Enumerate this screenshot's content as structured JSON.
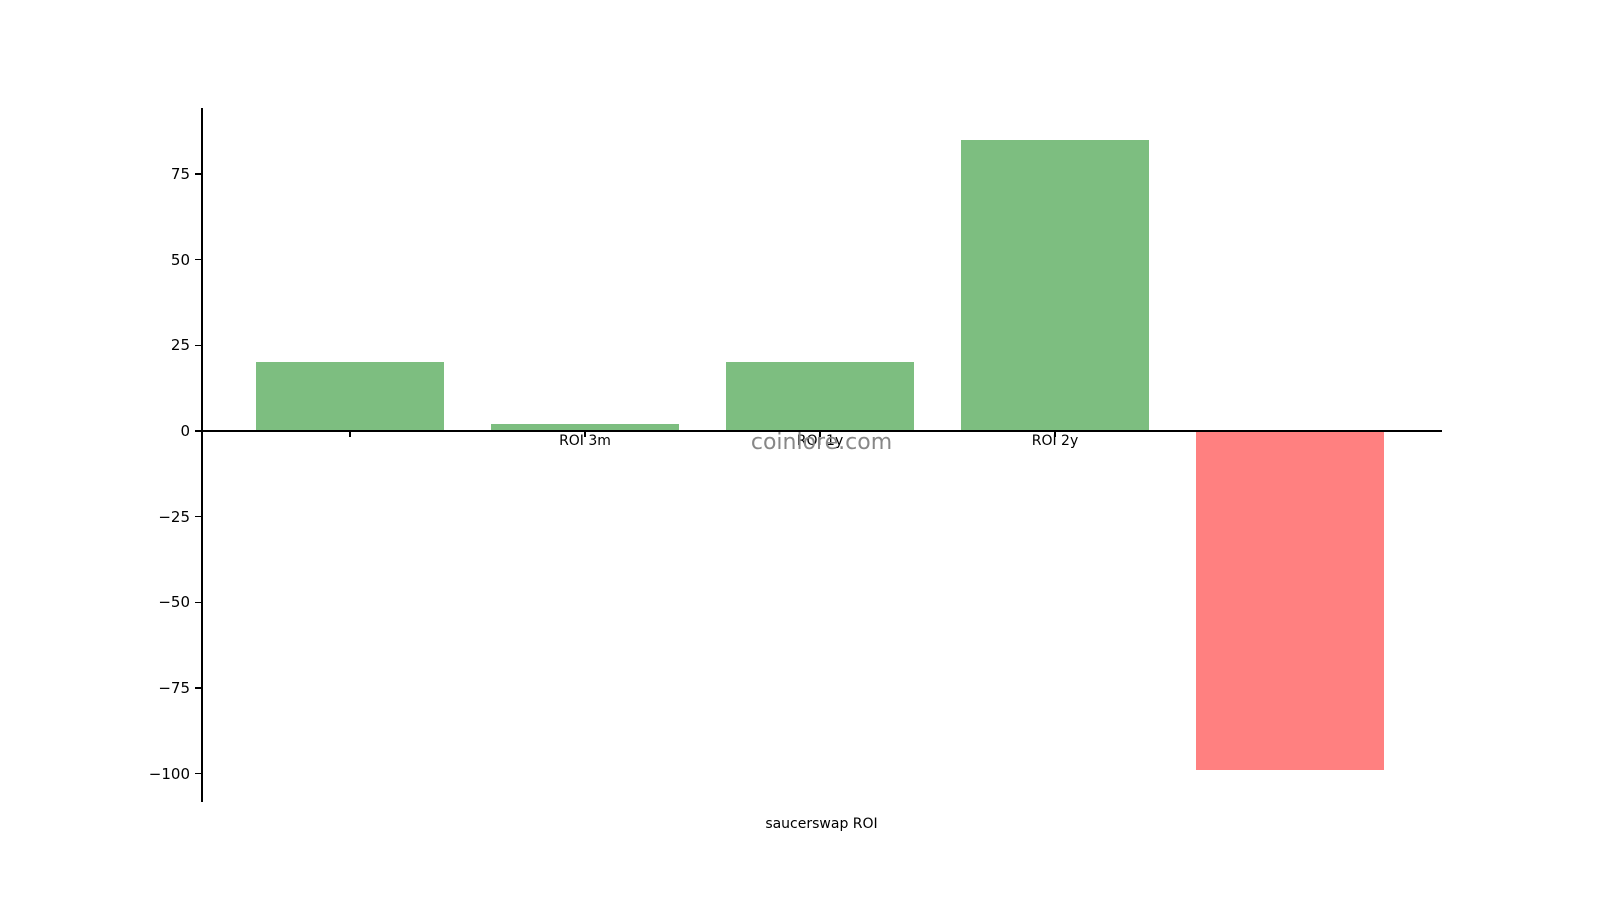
{
  "watermark": "coinlore.com",
  "chart_data": {
    "type": "bar",
    "title": "saucerswap ROI",
    "categories": [
      "",
      "ROI 3m",
      "ROI 1y",
      "ROI 2y",
      ""
    ],
    "values": [
      20,
      2,
      20,
      85,
      -99
    ],
    "xlabel": "",
    "ylabel": "",
    "yticks": [
      75,
      50,
      25,
      0,
      -25,
      -50,
      -75,
      -100
    ],
    "ytick_labels": [
      "75",
      "50",
      "25",
      "0",
      "−25",
      "−50",
      "−75",
      "−100"
    ],
    "ylim": [
      -108,
      94
    ],
    "grid": false,
    "legend": false,
    "bar_colors": {
      "positive": "#7dbe80",
      "negative": "#ff8080"
    },
    "colors": {
      "axis": "#000000",
      "text": "#000000",
      "watermark": "#878787",
      "background": "#ffffff"
    }
  }
}
